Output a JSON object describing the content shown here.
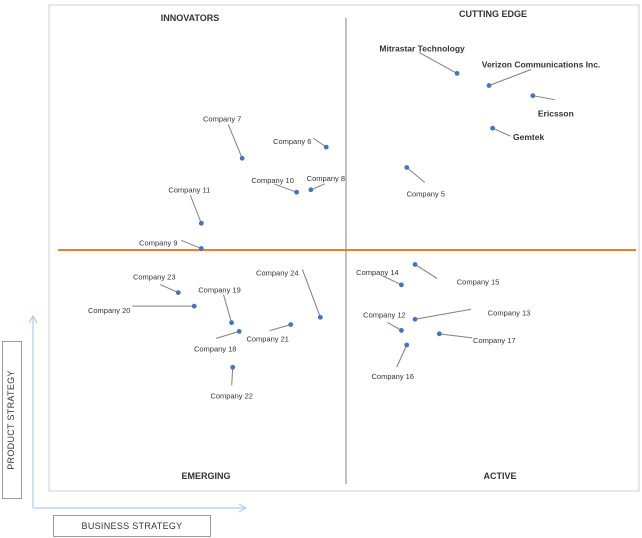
{
  "chart_data": {
    "type": "scatter",
    "title": "",
    "xlabel": "BUSINESS STRATEGY",
    "ylabel": "PRODUCT STRATEGY",
    "xlim": [
      0,
      10
    ],
    "ylim": [
      0,
      10
    ],
    "quadrants": {
      "top_left": "INNOVATORS",
      "top_right": "CUTTING EDGE",
      "bottom_left": "EMERGING",
      "bottom_right": "ACTIVE"
    },
    "colors": {
      "point": "#4472c4",
      "divider_h": "#ed7d31",
      "divider_v": "#7f7f7f",
      "leader": "#7f7f7f"
    },
    "points": [
      {
        "name": "Mitrastar Technology",
        "x": 6.91,
        "y": 8.59,
        "bold": true
      },
      {
        "name": "Verizon Communications  Inc.",
        "x": 7.45,
        "y": 8.34,
        "bold": true
      },
      {
        "name": "Ericsson",
        "x": 8.19,
        "y": 8.13,
        "bold": true
      },
      {
        "name": "Gemtek",
        "x": 7.51,
        "y": 7.46,
        "bold": true
      },
      {
        "name": "Company 5",
        "x": 6.06,
        "y": 6.65,
        "bold": false
      },
      {
        "name": "Company 6",
        "x": 4.7,
        "y": 7.07,
        "bold": false
      },
      {
        "name": "Company 7",
        "x": 3.28,
        "y": 6.84,
        "bold": false
      },
      {
        "name": "Company 8",
        "x": 4.44,
        "y": 6.19,
        "bold": false
      },
      {
        "name": "Company 10",
        "x": 4.2,
        "y": 6.14,
        "bold": false
      },
      {
        "name": "Company 11",
        "x": 2.59,
        "y": 5.5,
        "bold": false
      },
      {
        "name": "Company 9",
        "x": 2.59,
        "y": 4.98,
        "bold": false
      },
      {
        "name": "Company 14",
        "x": 5.97,
        "y": 4.23,
        "bold": false
      },
      {
        "name": "Company 15",
        "x": 6.2,
        "y": 4.65,
        "bold": false
      },
      {
        "name": "Company 13",
        "x": 6.2,
        "y": 3.52,
        "bold": false
      },
      {
        "name": "Company 12",
        "x": 5.97,
        "y": 3.29,
        "bold": false
      },
      {
        "name": "Company 17",
        "x": 6.61,
        "y": 3.22,
        "bold": false
      },
      {
        "name": "Company 16",
        "x": 6.06,
        "y": 2.99,
        "bold": false
      },
      {
        "name": "Company 23",
        "x": 2.2,
        "y": 4.07,
        "bold": false
      },
      {
        "name": "Company 20",
        "x": 2.47,
        "y": 3.79,
        "bold": false
      },
      {
        "name": "Company 19",
        "x": 3.1,
        "y": 3.45,
        "bold": false
      },
      {
        "name": "Company 24",
        "x": 4.6,
        "y": 3.56,
        "bold": false
      },
      {
        "name": "Company 21",
        "x": 4.1,
        "y": 3.41,
        "bold": false
      },
      {
        "name": "Company 18",
        "x": 3.23,
        "y": 3.27,
        "bold": false
      },
      {
        "name": "Company 22",
        "x": 3.12,
        "y": 2.53,
        "bold": false
      }
    ]
  }
}
